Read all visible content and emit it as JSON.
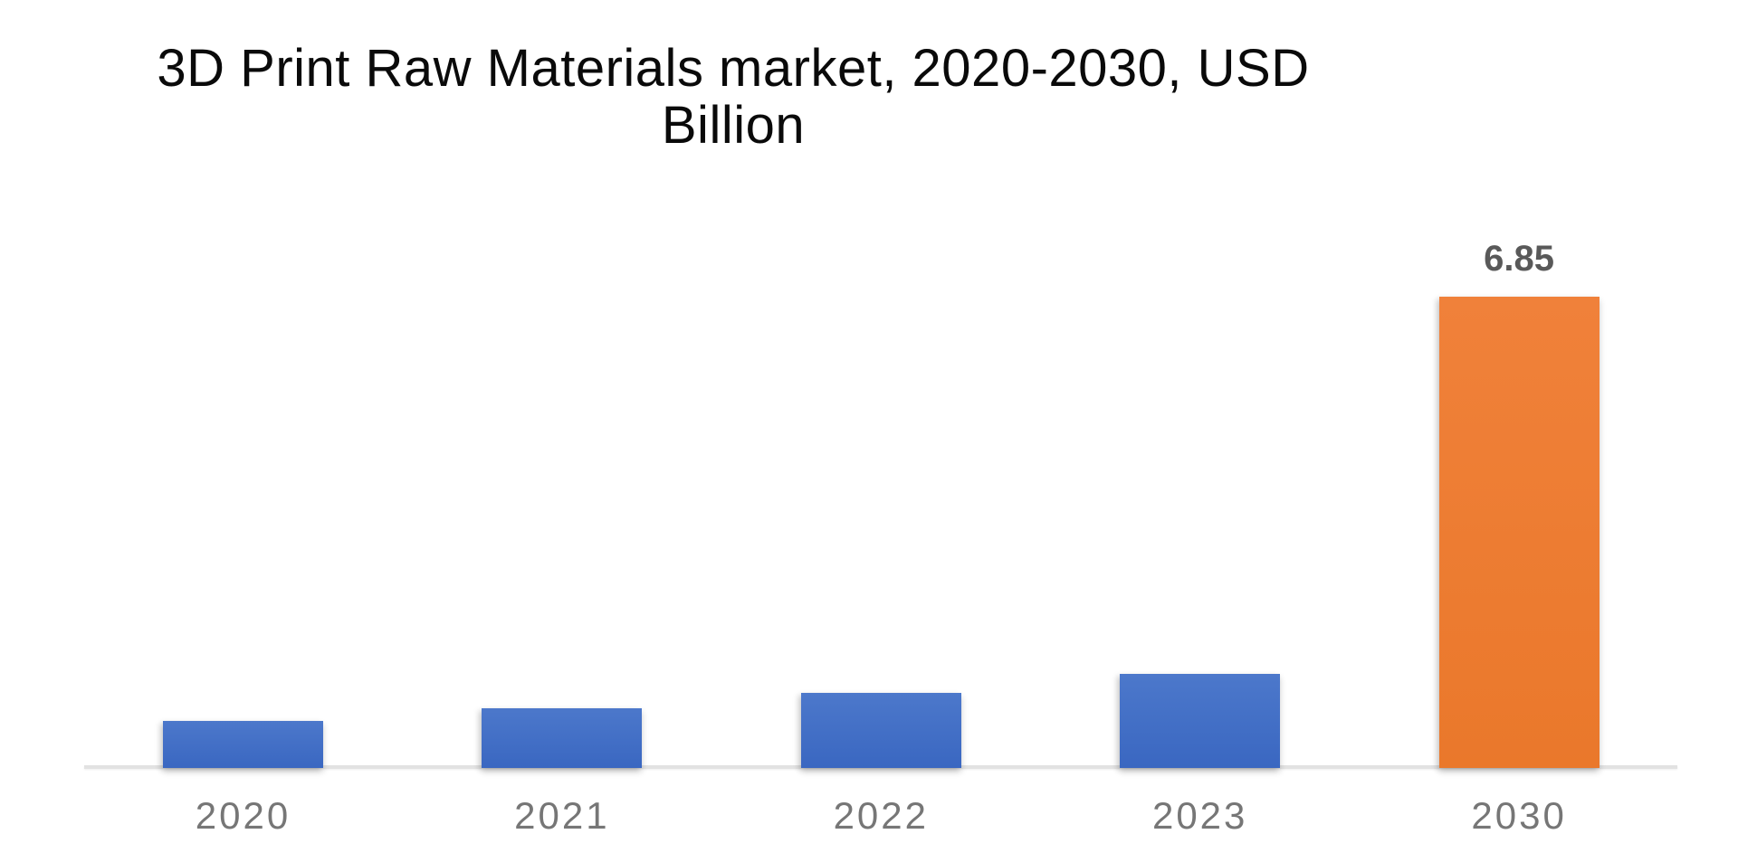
{
  "page": {
    "background_color": "#FFFFFF"
  },
  "chart_data": {
    "type": "bar",
    "title": "3D Print Raw Materials market, 2020-2030, USD Billion",
    "title_lines": [
      "3D Print Raw Materials market, 2020-2030, USD",
      "Billion"
    ],
    "categories": [
      "2020",
      "2021",
      "2022",
      "2023",
      "2030"
    ],
    "values": [
      0.68,
      0.87,
      1.09,
      1.37,
      6.85
    ],
    "data_labels": [
      "",
      "",
      "",
      "",
      "6.85"
    ],
    "xlabel": "",
    "ylabel": "",
    "ylim": [
      0,
      7.3
    ],
    "grid": false,
    "legend": false,
    "y_axis_shown": false,
    "bar_colors": [
      "#3E6CC3",
      "#3E6CC3",
      "#3E6CC3",
      "#3E6CC3",
      "#ED7D31"
    ],
    "colors": {
      "bar_blue": "#3E6CC3",
      "bar_orange": "#ED7D31",
      "data_label_text": "#595959",
      "axis_label_text": "#767676",
      "axis_line": "#E2E2E2",
      "title_text": "#0A0A0A"
    }
  }
}
